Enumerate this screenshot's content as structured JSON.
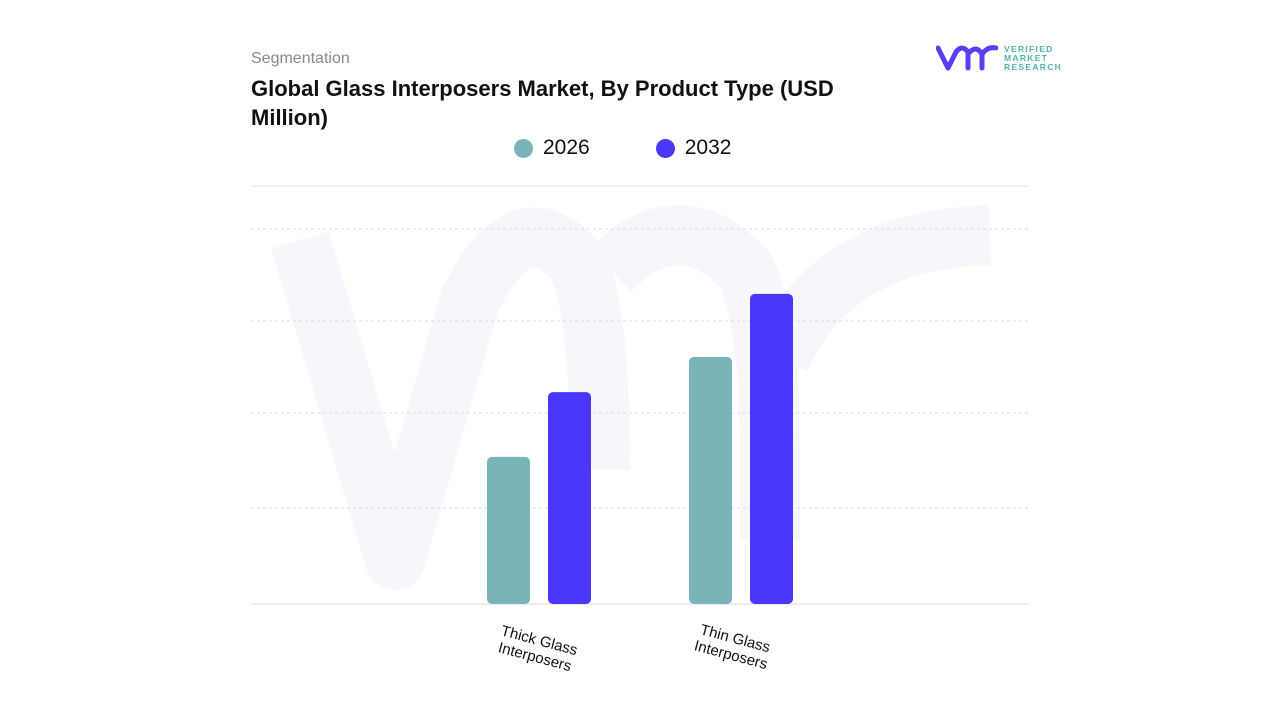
{
  "header": {
    "segment_label": "Segmentation",
    "title": "Global Glass Interposers Market, By Product Type (USD Million)"
  },
  "logo": {
    "lines": [
      "VERIFIED",
      "MARKET",
      "RESEARCH"
    ],
    "color": "#5b3df5"
  },
  "chart_data": {
    "type": "bar",
    "title": "Global Glass Interposers Market, By Product Type (USD Million)",
    "categories": [
      "Thick Glass Interposers",
      "Thin Glass Interposers"
    ],
    "series": [
      {
        "name": "2026",
        "color": "#78b4b8",
        "values": [
          35.2,
          59.1
        ]
      },
      {
        "name": "2032",
        "color": "#4b37fb",
        "values": [
          50.7,
          74.2
        ]
      }
    ],
    "ylim": [
      0,
      100
    ],
    "grid": true,
    "legend_placement": "top"
  }
}
